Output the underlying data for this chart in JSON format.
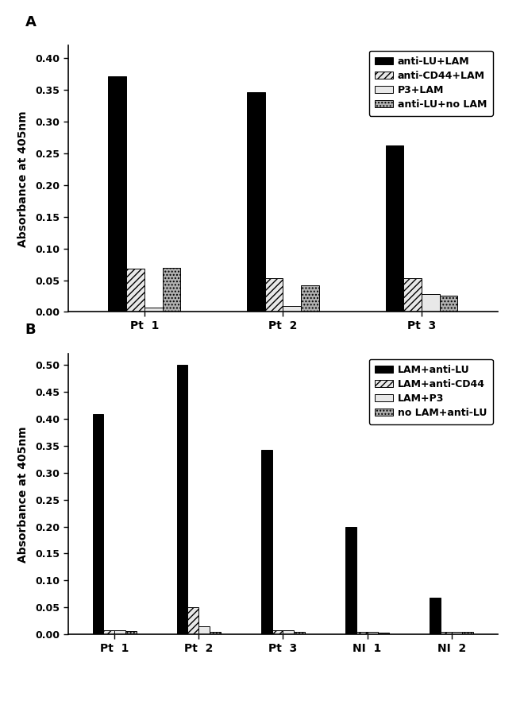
{
  "panel_A": {
    "title": "A",
    "categories": [
      "Pt  1",
      "Pt  2",
      "Pt  3"
    ],
    "series": {
      "anti-LU+LAM": [
        0.372,
        0.347,
        0.263
      ],
      "anti-CD44+LAM": [
        0.068,
        0.053,
        0.053
      ],
      "P3+LAM": [
        0.007,
        0.01,
        0.028
      ],
      "anti-LU+no LAM": [
        0.07,
        0.042,
        0.026
      ]
    },
    "ylim": [
      0.0,
      0.42
    ],
    "yticks": [
      0.0,
      0.05,
      0.1,
      0.15,
      0.2,
      0.25,
      0.3,
      0.35,
      0.4
    ],
    "ylabel": "Absorbance at 405nm"
  },
  "panel_B": {
    "title": "B",
    "categories": [
      "Pt  1",
      "Pt  2",
      "Pt  3",
      "NI  1",
      "NI  2"
    ],
    "series": {
      "LAM+anti-LU": [
        0.408,
        0.5,
        0.342,
        0.2,
        0.068
      ],
      "LAM+anti-CD44": [
        0.007,
        0.05,
        0.007,
        0.004,
        0.005
      ],
      "LAM+P3": [
        0.007,
        0.015,
        0.008,
        0.004,
        0.004
      ],
      "no LAM+anti-LU": [
        0.006,
        0.005,
        0.004,
        0.003,
        0.004
      ]
    },
    "ylim": [
      0.0,
      0.52
    ],
    "yticks": [
      0.0,
      0.05,
      0.1,
      0.15,
      0.2,
      0.25,
      0.3,
      0.35,
      0.4,
      0.45,
      0.5
    ],
    "ylabel": "Absorbance at 405nm"
  },
  "bar_colors": [
    "#000000",
    "#e8e8e8",
    "#e8e8e8",
    "#b0b0b0"
  ],
  "bar_patterns": [
    "",
    "////",
    "====",
    "...."
  ],
  "bar_edgecolors": [
    "#000000",
    "#000000",
    "#000000",
    "#000000"
  ],
  "legend_labels_A": [
    "anti-LU+LAM",
    "anti-CD44+LAM",
    "P3+LAM",
    "anti-LU+no LAM"
  ],
  "legend_labels_B": [
    "LAM+anti-LU",
    "LAM+anti-CD44",
    "LAM+P3",
    "no LAM+anti-LU"
  ],
  "bar_width": 0.13,
  "bg_color": "#d8d8d8",
  "fontsize_label": 10,
  "fontsize_tick": 9,
  "fontsize_panel": 13,
  "fontsize_legend": 9
}
